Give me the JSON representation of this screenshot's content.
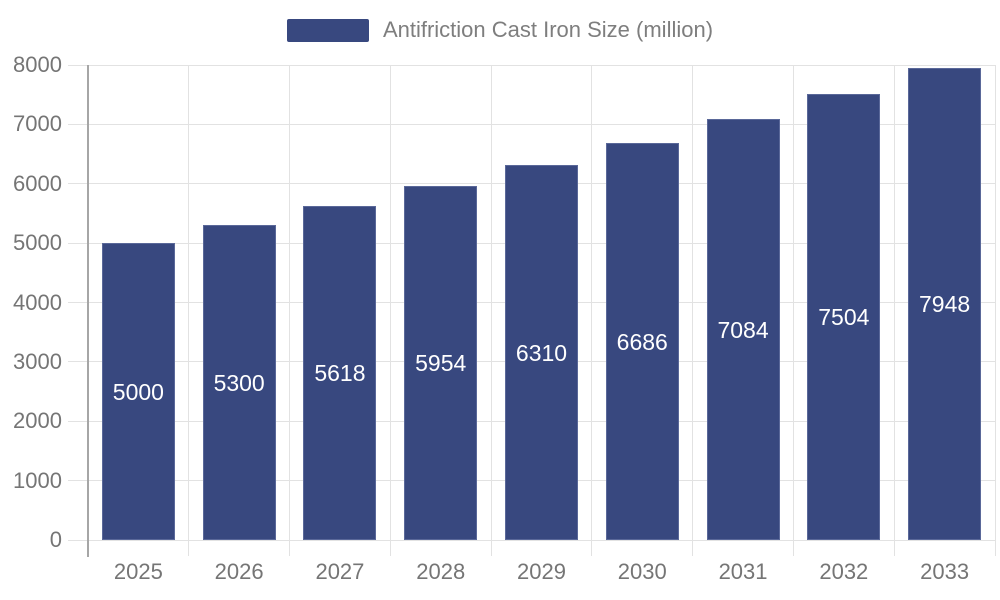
{
  "chart_data": {
    "type": "bar",
    "title": "Antifriction Cast Iron Size (million)",
    "legend": {
      "position": "top",
      "entries": [
        "Antifriction Cast Iron Size (million)"
      ]
    },
    "categories": [
      "2025",
      "2026",
      "2027",
      "2028",
      "2029",
      "2030",
      "2031",
      "2032",
      "2033"
    ],
    "series": [
      {
        "name": "Antifriction Cast Iron Size (million)",
        "values": [
          5000,
          5300,
          5618,
          5954,
          6310,
          6686,
          7084,
          7504,
          7948
        ]
      }
    ],
    "bar_labels_visible": true,
    "xlabel": "",
    "ylabel": "",
    "ylim": [
      0,
      8000
    ],
    "ytick_interval": 1000,
    "yticks": [
      0,
      1000,
      2000,
      3000,
      4000,
      5000,
      6000,
      7000,
      8000
    ],
    "grid": true,
    "colors": {
      "bar": "#38487f",
      "bar_edge": "#5a6899",
      "bar_label": "#ffffff",
      "grid": "#e2e2e2",
      "axis_line": "#a6a6a6",
      "tick_label": "#757575",
      "legend_text": "#7e7e7e",
      "background": "#ffffff"
    }
  }
}
